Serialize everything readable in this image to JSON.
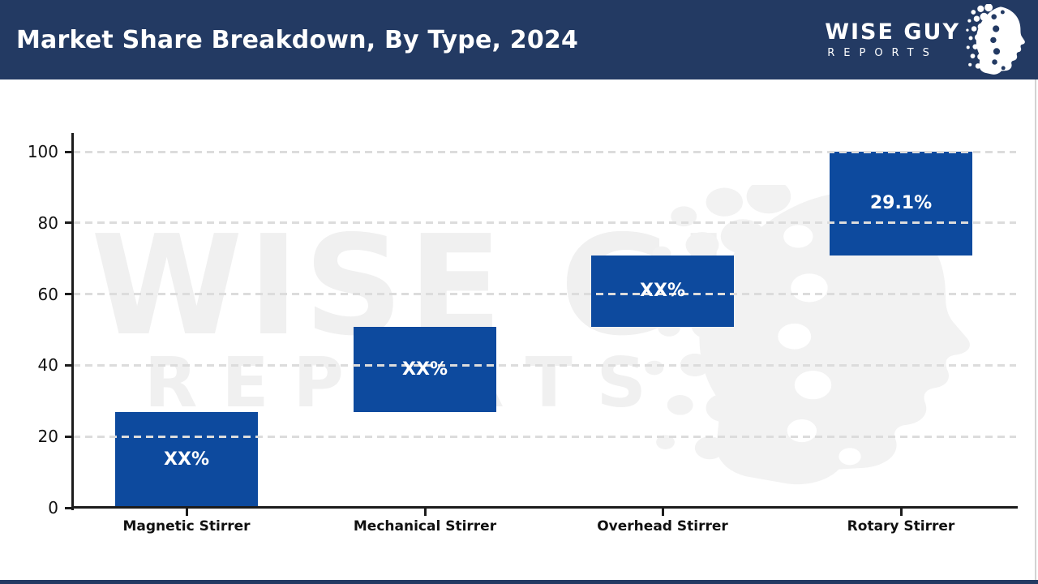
{
  "header": {
    "title": "Market Share Breakdown, By Type, 2024",
    "logo": {
      "name": "WISE GUY",
      "subtitle": "REPORTS"
    }
  },
  "watermark": {
    "name": "WISE GUY",
    "subtitle": "REPORTS"
  },
  "colors": {
    "header_bg": "#233a63",
    "bar": "#0d4a9e",
    "grid": "#dcdcdc",
    "axis": "#1c1c1c",
    "watermark": "#f0f0f0",
    "bar_label_text": "#ffffff",
    "tick_text": "#111111"
  },
  "chart_data": {
    "type": "bar",
    "subtype": "floating-waterfall",
    "title": "Market Share Breakdown, By Type, 2024",
    "categories": [
      "Magnetic Stirrer",
      "Mechanical Stirrer",
      "Overhead Stirrer",
      "Rotary Stirrer"
    ],
    "series": [
      {
        "name": "Market Share",
        "segments": [
          {
            "start": 0,
            "end": 26.8,
            "label": "XX%"
          },
          {
            "start": 26.8,
            "end": 50.7,
            "label": "XX%"
          },
          {
            "start": 50.7,
            "end": 70.9,
            "label": "XX%"
          },
          {
            "start": 70.9,
            "end": 100,
            "label": "29.1%"
          }
        ]
      }
    ],
    "xlabel": "",
    "ylabel": "",
    "ylim": [
      0,
      100
    ],
    "yticks": [
      0,
      20,
      40,
      60,
      80,
      100
    ],
    "grid": "horizontal-dashed",
    "legend": "none",
    "bar_color": "#0d4a9e"
  }
}
